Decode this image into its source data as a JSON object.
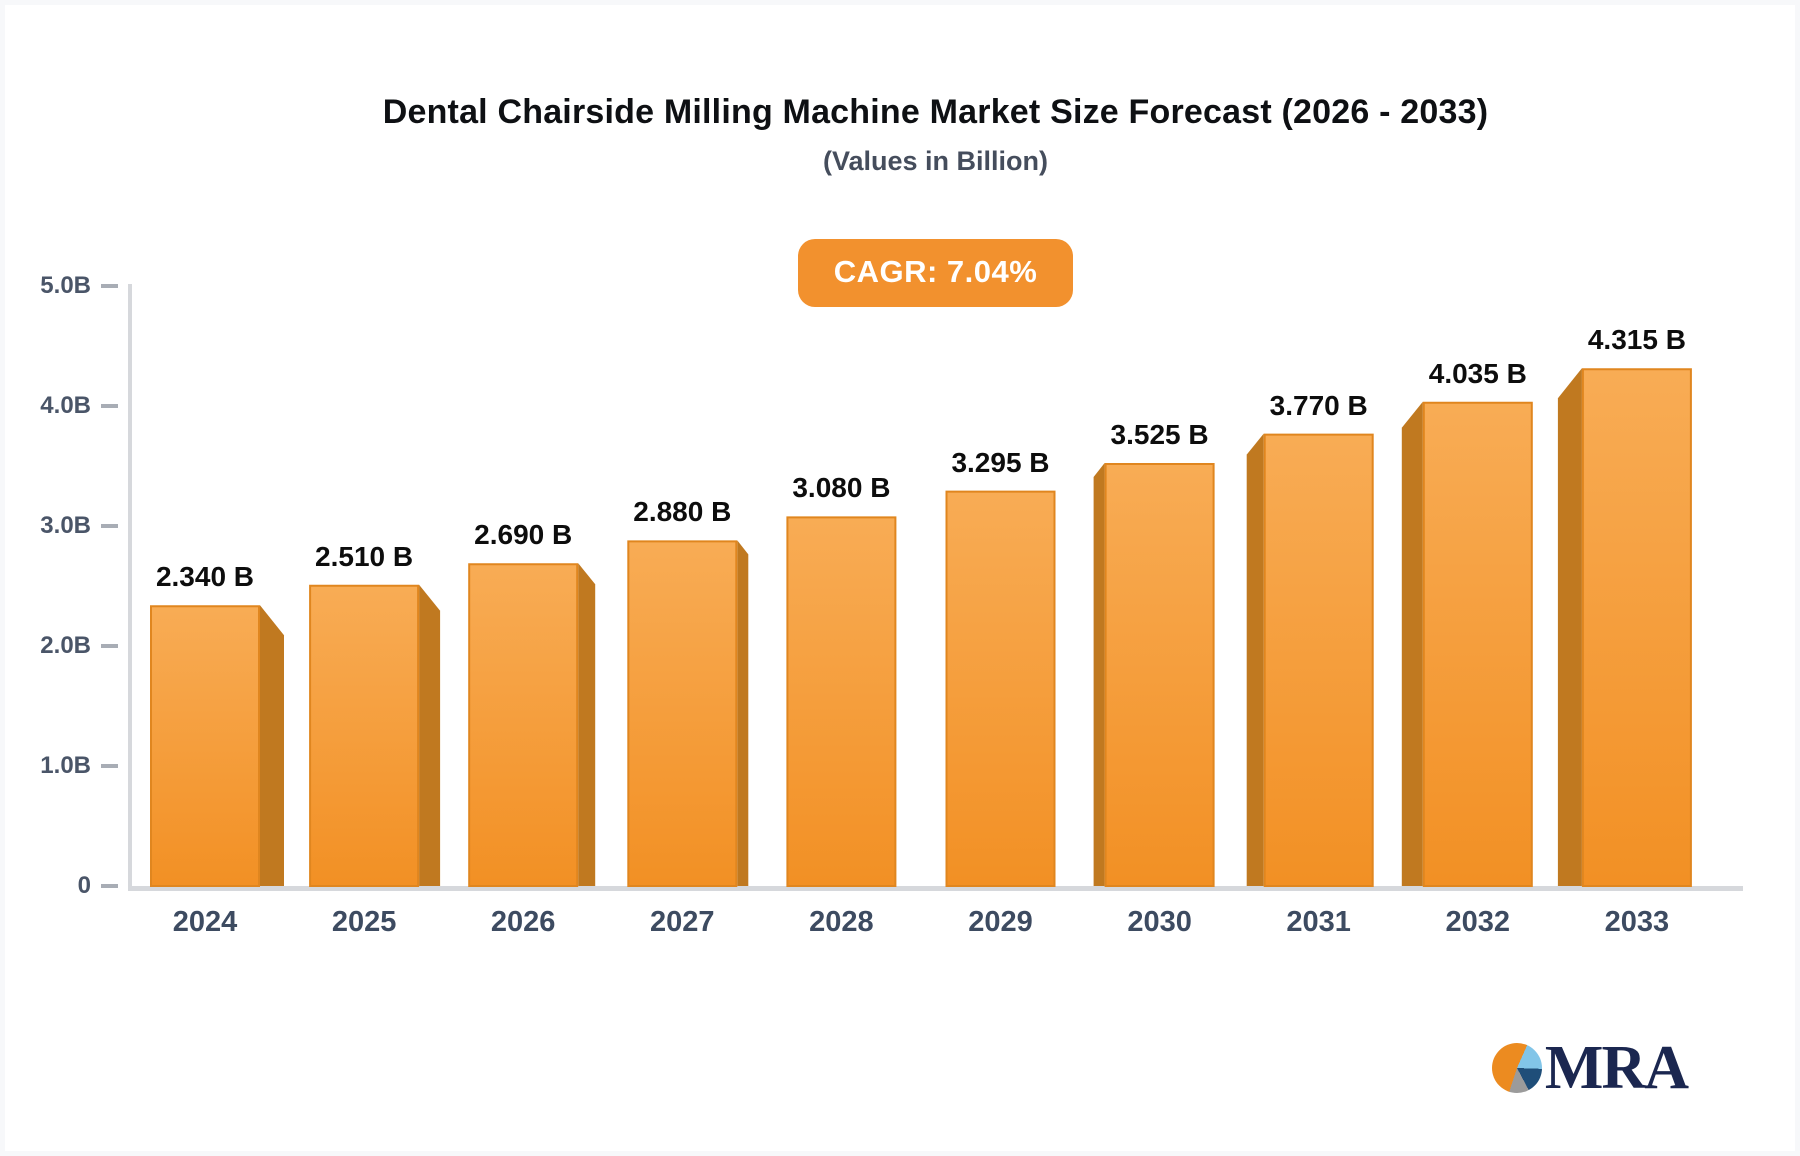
{
  "header": {
    "title": "Dental Chairside Milling Machine Market Size Forecast (2026 - 2033)",
    "subtitle": "(Values in Billion)"
  },
  "badge": {
    "label": "CAGR: 7.04%",
    "bg_color": "#f2912e",
    "text_color": "#ffffff"
  },
  "chart_data": {
    "type": "bar",
    "title": "Dental Chairside Milling Machine Market Size Forecast (2026 - 2033)",
    "subtitle": "(Values in Billion)",
    "categories": [
      "2024",
      "2025",
      "2026",
      "2027",
      "2028",
      "2029",
      "2030",
      "2031",
      "2032",
      "2033"
    ],
    "values": [
      2.34,
      2.51,
      2.69,
      2.88,
      3.08,
      3.295,
      3.525,
      3.77,
      4.035,
      4.315
    ],
    "value_labels": [
      "2.340 B",
      "2.510 B",
      "2.690 B",
      "2.880 B",
      "3.080 B",
      "3.295 B",
      "3.525 B",
      "3.770 B",
      "4.035 B",
      "4.315 B"
    ],
    "xlabel": "",
    "ylabel": "",
    "ylim": [
      0,
      5
    ],
    "yticks": [
      {
        "value": 0,
        "label": "0"
      },
      {
        "value": 1,
        "label": "1.0B"
      },
      {
        "value": 2,
        "label": "2.0B"
      },
      {
        "value": 3,
        "label": "3.0B"
      },
      {
        "value": 4,
        "label": "4.0B"
      },
      {
        "value": 5,
        "label": "5.0B"
      }
    ],
    "grid": false,
    "legend": "none",
    "bar_effect": "3d-extruded bars leaning outward from center (left bars shaded on right, right bars shaded on left, middle bars flat)",
    "colors": {
      "bar_face_top": "#f8ac55",
      "bar_face_bottom": "#f29024",
      "bar_stroke": "#e0861f",
      "bar_side": "#c07920",
      "axis_line": "#d6d8dc",
      "tick_dash": "#a8adb5",
      "y_label": "#4a5568",
      "x_label": "#3d4b61",
      "value_label": "#0d0d0d"
    }
  },
  "logo": {
    "text": "MRA",
    "pie_colors": [
      "#ec8b20",
      "#82c5e8",
      "#1f4e79",
      "#9b9b9b"
    ],
    "text_color": "#1b2750"
  }
}
